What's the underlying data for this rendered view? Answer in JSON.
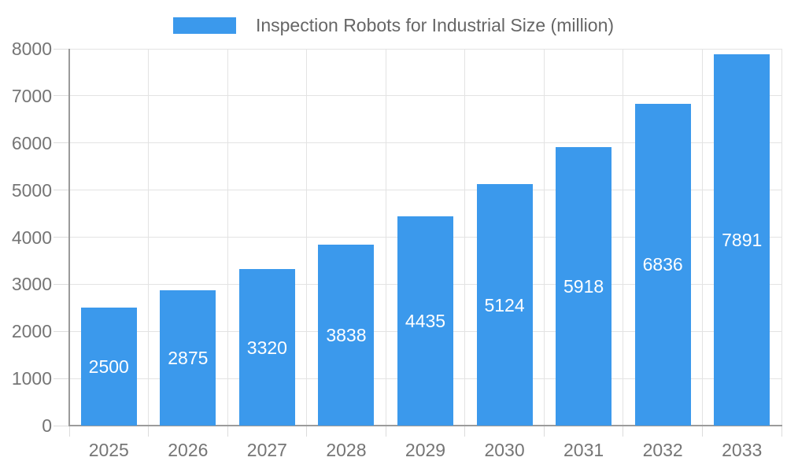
{
  "legend": {
    "label": "Inspection Robots for Industrial Size (million)"
  },
  "colors": {
    "bar": "#3B99EC",
    "grid": "#E3E3E3",
    "axis": "#9B9B9B",
    "tick": "#DCDCDC",
    "axis_text": "#757575",
    "legend_text": "#666666",
    "value_text": "#FFFFFF"
  },
  "chart_data": {
    "type": "bar",
    "title": "Inspection Robots for Industrial Size (million)",
    "categories": [
      "2025",
      "2026",
      "2027",
      "2028",
      "2029",
      "2030",
      "2031",
      "2032",
      "2033"
    ],
    "values": [
      2500,
      2875,
      3320,
      3838,
      4435,
      5124,
      5918,
      6836,
      7891
    ],
    "xlabel": "",
    "ylabel": "",
    "ylim": [
      0,
      8000
    ],
    "ytick_step": 1000,
    "yticks": [
      0,
      1000,
      2000,
      3000,
      4000,
      5000,
      6000,
      7000,
      8000
    ],
    "grid": true,
    "legend_position": "top",
    "value_label_position": "inside-center"
  }
}
